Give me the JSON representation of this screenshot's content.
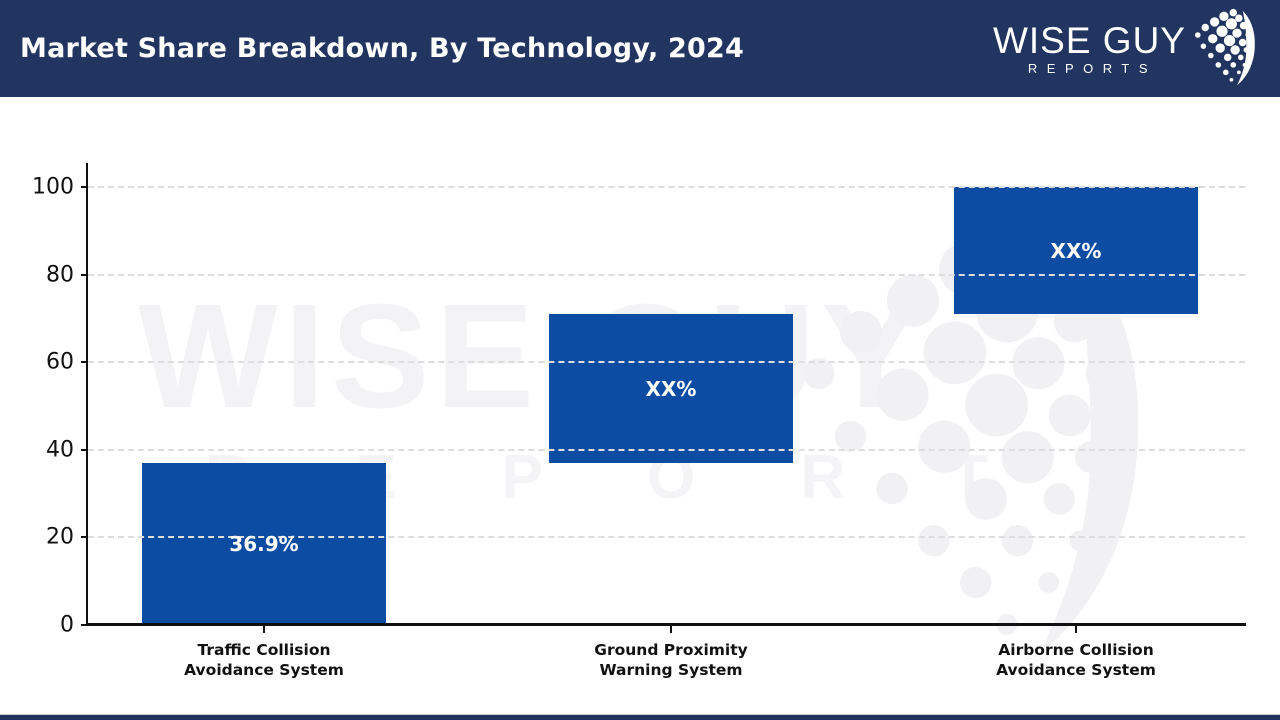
{
  "header": {
    "title": "Market Share Breakdown, By Technology, 2024",
    "logo": {
      "line1": "WISE GUY",
      "line2": "REPORTS"
    }
  },
  "watermark": {
    "line1": "WISE GUY",
    "line2": "R E P O R T S"
  },
  "colors": {
    "header_bg": "#213560",
    "bar": "#0c4ca3",
    "bar_label": "#ffffff",
    "gridline": "#dddddd",
    "axis": "#111111",
    "watermark": "#f3f3f5"
  },
  "chart_data": {
    "type": "bar",
    "subtype": "waterfall-segments",
    "title": "Market Share Breakdown, By Technology, 2024",
    "xlabel": "",
    "ylabel": "",
    "ylim": [
      0,
      105
    ],
    "yticks": [
      0,
      20,
      40,
      60,
      80,
      100
    ],
    "grid": "horizontal-dashed, drawn over bars",
    "legend": "none",
    "categories": [
      [
        "Traffic Collision",
        "Avoidance System"
      ],
      [
        "Ground Proximity",
        "Warning System"
      ],
      [
        "Airborne Collision",
        "Avoidance System"
      ]
    ],
    "segments": [
      {
        "label": "36.9%",
        "start": 0,
        "end": 36.9
      },
      {
        "label": "XX%",
        "start": 36.9,
        "end": 71
      },
      {
        "label": "XX%",
        "start": 71,
        "end": 100
      }
    ]
  }
}
